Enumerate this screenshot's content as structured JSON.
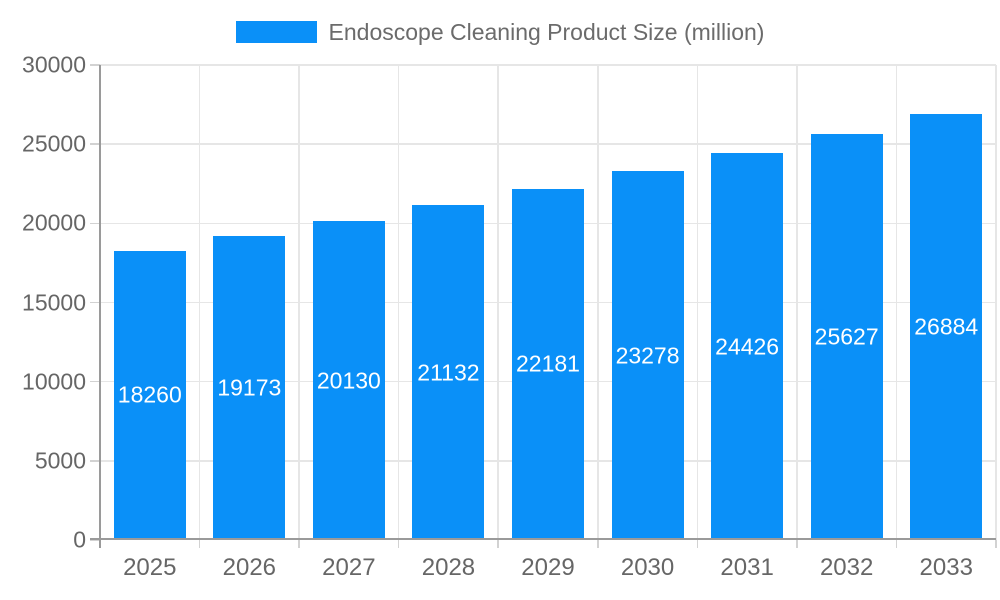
{
  "chart_data": {
    "type": "bar",
    "title": "Endoscope Cleaning Product Size (million)",
    "categories": [
      "2025",
      "2026",
      "2027",
      "2028",
      "2029",
      "2030",
      "2031",
      "2032",
      "2033"
    ],
    "values": [
      18260,
      19173,
      20130,
      21132,
      22181,
      23278,
      24426,
      25627,
      26884
    ],
    "xlabel": "",
    "ylabel": "",
    "ylim": [
      0,
      30000
    ],
    "yticks": [
      0,
      5000,
      10000,
      15000,
      20000,
      25000,
      30000
    ],
    "legend_position": "top",
    "grid": true,
    "bar_labels_inside": true,
    "colors": {
      "bar": "#0a90f8",
      "bar_label": "#ffffff",
      "grid": "#e6e6e6",
      "tick": "#d2d2d2",
      "axis": "#9a9a9a",
      "tick_text": "#666666",
      "legend_text": "#6b6b6b",
      "background": "#ffffff"
    }
  }
}
